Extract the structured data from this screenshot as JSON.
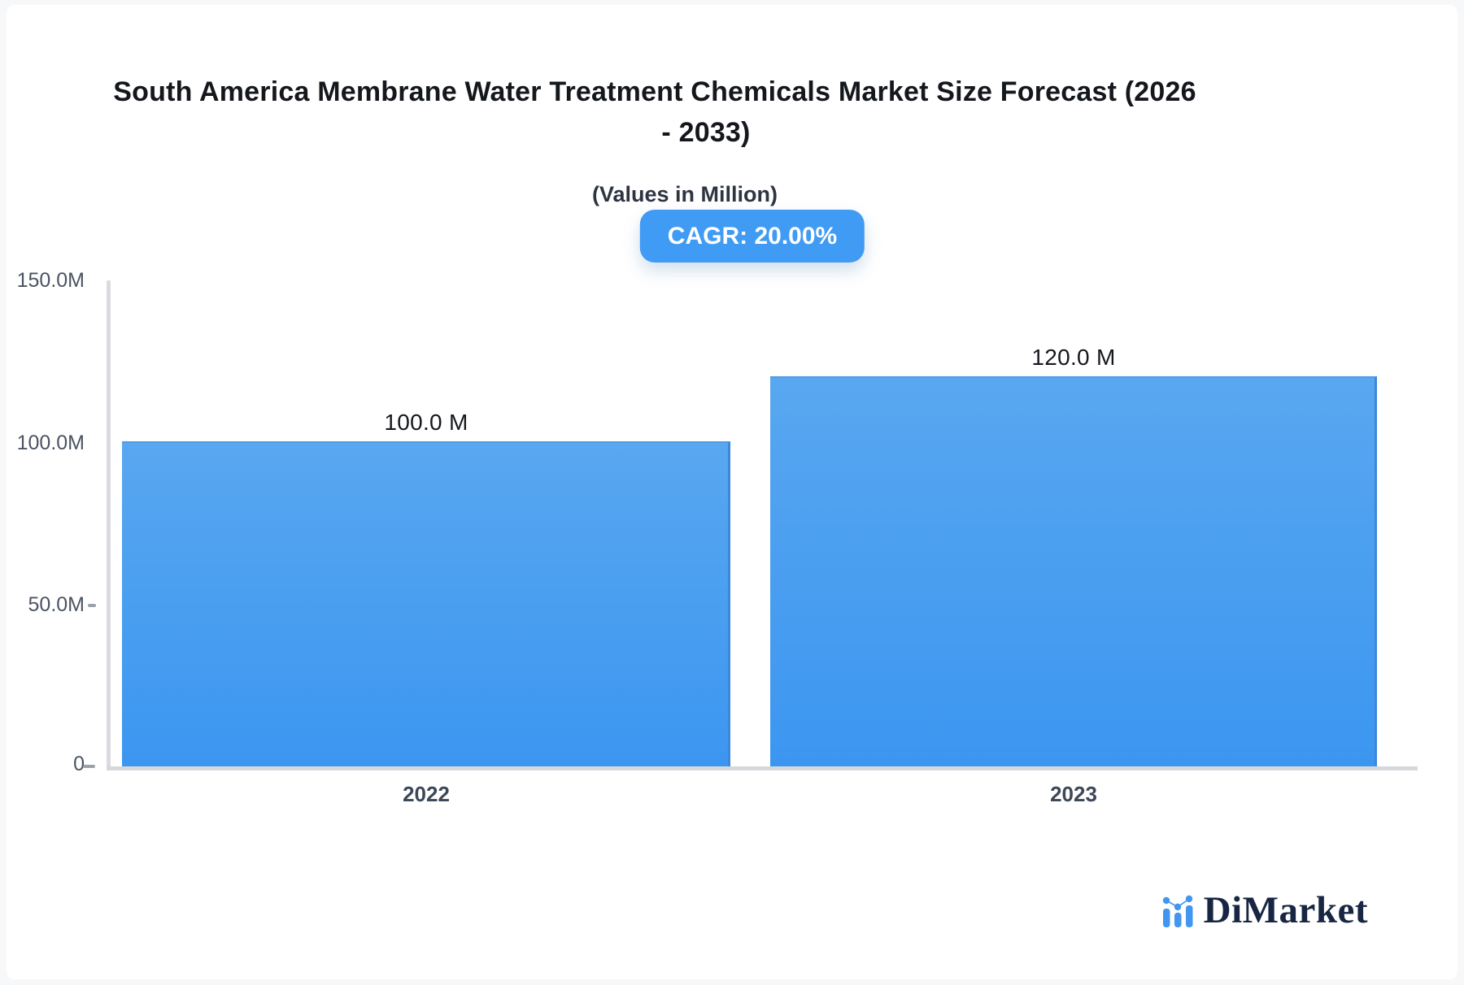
{
  "header": {
    "title_lines": [
      "South America Membrane Water Treatment Chemicals Market Size Forecast (2026",
      "- 2033)"
    ],
    "subtitle": "(Values in Million)",
    "cagr_badge": "CAGR: 20.00%"
  },
  "chart_data": {
    "type": "bar",
    "title": "South America Membrane Water Treatment Chemicals Market Size Forecast (2026 - 2033)",
    "subtitle": "(Values in Million)",
    "unit": "Million",
    "cagr_percent": 20.0,
    "categories": [
      "2022",
      "2023"
    ],
    "values": [
      100.0,
      120.0
    ],
    "value_labels": [
      "100.0 M",
      "120.0 M"
    ],
    "xlabel": "",
    "ylabel": "",
    "ylim": [
      0,
      150
    ],
    "yticks": [
      "150.0M",
      "100.0M",
      "50.0M",
      "0"
    ],
    "grid": false,
    "legend": null,
    "bar_gradient": [
      "#58a7f0",
      "#3c96f0"
    ]
  },
  "branding": {
    "logo_text": "DiMarket",
    "logo_icon": "bar-chart-icon",
    "logo_color": "#4296f0"
  },
  "colors": {
    "badge_bg": "#3f9bf3",
    "page_bg": "#f7f8fa",
    "card_bg": "#ffffff",
    "axis": "#d9dbde"
  }
}
